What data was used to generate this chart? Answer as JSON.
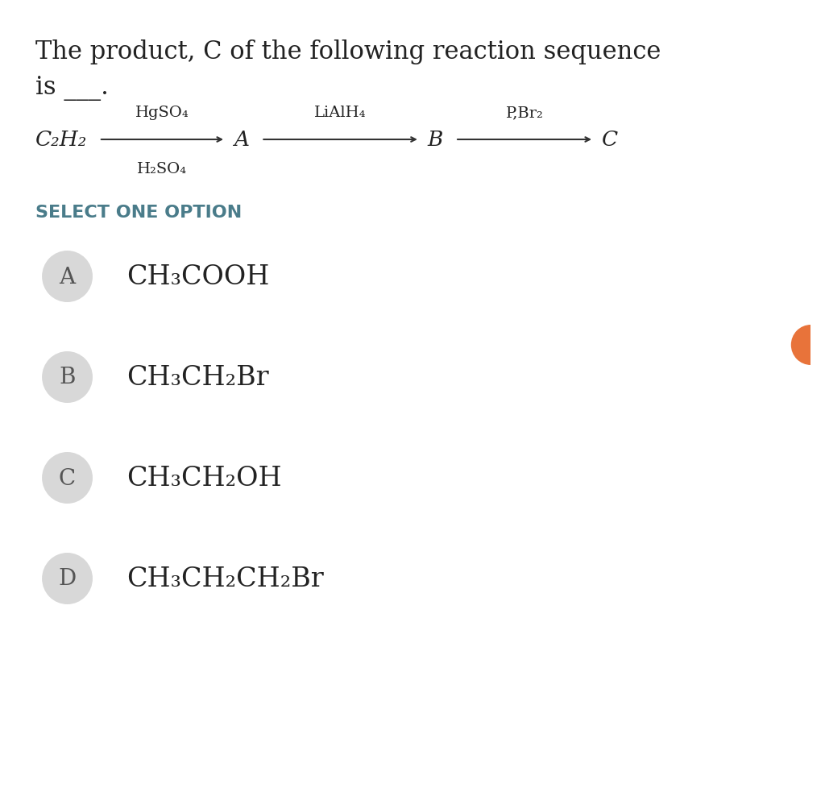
{
  "background_color": "#ffffff",
  "title_line1": "The product, C of the following reaction sequence",
  "title_line2": "is ___.",
  "title_fontsize": 22,
  "title_color": "#222222",
  "reaction": {
    "reactant": "C₂H₂",
    "reagent_above": "HgSO₄",
    "reagent_below": "H₂SO₄",
    "A": "A",
    "reagent2": "LiAlH₄",
    "B": "B",
    "reagent3": "P,Br₂",
    "C": "C"
  },
  "select_label": "SELECT ONE OPTION",
  "select_color": "#4a7c8a",
  "select_fontsize": 16,
  "options": [
    {
      "label": "A",
      "formula": "CH₃COOH"
    },
    {
      "label": "B",
      "formula": "CH₃CH₂Br"
    },
    {
      "label": "C",
      "formula": "CH₃CH₂OH"
    },
    {
      "label": "D",
      "formula": "CH₃CH₂CH₂Br"
    }
  ],
  "option_circle_color": "#d8d8d8",
  "option_label_color": "#555555",
  "option_formula_color": "#222222",
  "option_fontsize": 24,
  "option_label_fontsize": 20,
  "orange_dot_color": "#e8733a"
}
